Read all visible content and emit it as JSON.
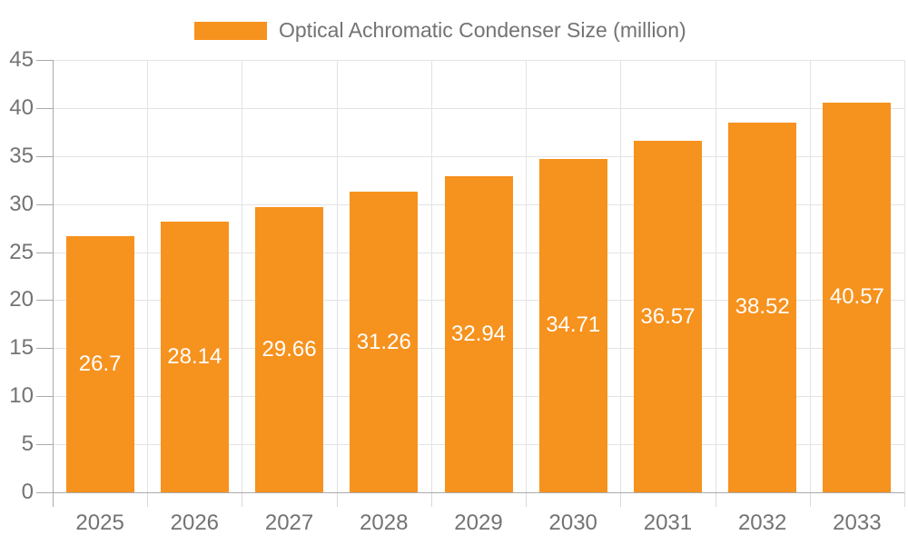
{
  "legend": {
    "label": "Optical Achromatic Condenser Size (million)"
  },
  "colors": {
    "bar": "#F6921E",
    "grid": "#E3E3E3",
    "axis": "#AAAAAA",
    "tick": "#D9D9D9",
    "text": "#737373",
    "value_label": "#FFFFFF",
    "background": "#FFFFFF"
  },
  "chart_data": {
    "type": "bar",
    "title": "Optical Achromatic Condenser Size (million)",
    "series_name": "Optical Achromatic Condenser Size (million)",
    "categories": [
      "2025",
      "2026",
      "2027",
      "2028",
      "2029",
      "2030",
      "2031",
      "2032",
      "2033"
    ],
    "values": [
      26.7,
      28.14,
      29.66,
      31.26,
      32.94,
      34.71,
      36.57,
      38.52,
      40.57
    ],
    "value_labels": [
      "26.7",
      "28.14",
      "29.66",
      "31.26",
      "32.94",
      "34.71",
      "36.57",
      "38.52",
      "40.57"
    ],
    "xlabel": "",
    "ylabel": "",
    "ylim": [
      0,
      45
    ],
    "ytick_step": 5,
    "yticks": [
      0,
      5,
      10,
      15,
      20,
      25,
      30,
      35,
      40,
      45
    ],
    "grid": "on",
    "legend_position": "top-center",
    "value_label_position": "inside-center"
  }
}
